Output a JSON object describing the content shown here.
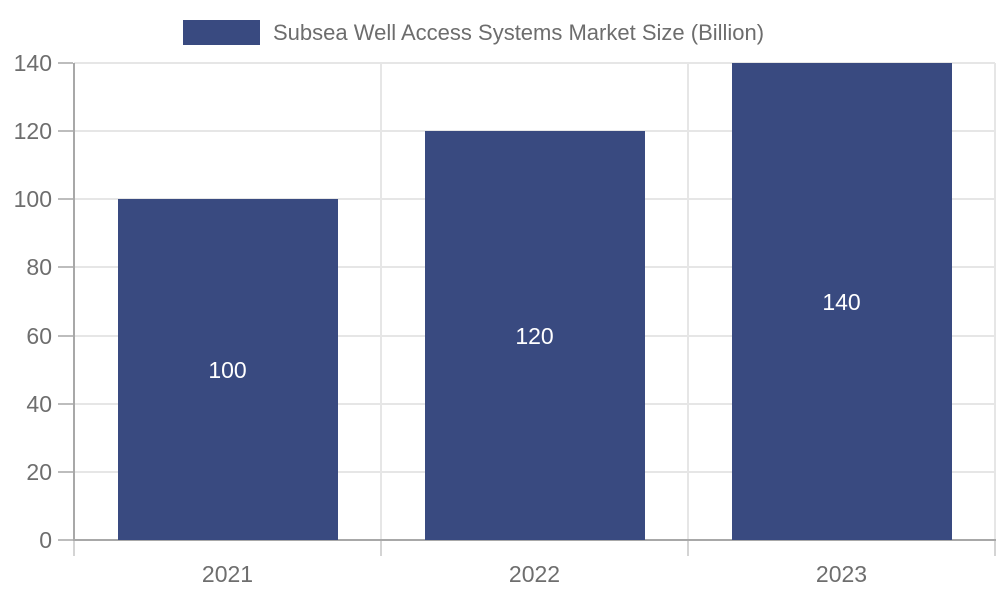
{
  "legend": {
    "label": "Subsea Well Access Systems Market Size (Billion)"
  },
  "palette": {
    "bar": "#394A80",
    "grid": "#e6e6e6",
    "axis": "#a8a8a8",
    "tick_label_text": "#6e6e6e",
    "legend_text": "#6d6d6d",
    "value_label_text": "#ffffff"
  },
  "chart_data": {
    "type": "bar",
    "title": "Subsea Well Access Systems Market Size (Billion)",
    "categories": [
      "2021",
      "2022",
      "2023"
    ],
    "values": [
      100,
      120,
      140
    ],
    "series": [
      {
        "name": "Subsea Well Access Systems Market Size (Billion)",
        "values": [
          100,
          120,
          140
        ]
      }
    ],
    "value_labels": [
      "100",
      "120",
      "140"
    ],
    "xlabel": "",
    "ylabel": "",
    "ylim": [
      0,
      140
    ],
    "yticks": [
      0,
      20,
      40,
      60,
      80,
      100,
      120,
      140
    ],
    "grid": true,
    "legend_position": "top",
    "bar_color": "#394A80"
  }
}
